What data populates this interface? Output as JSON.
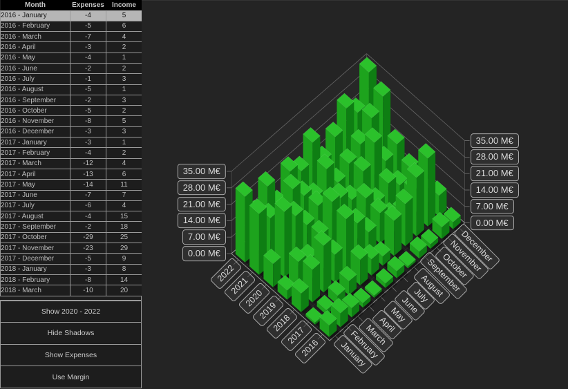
{
  "sidebar": {
    "table": {
      "headers": [
        "Month",
        "Expenses",
        "Income"
      ],
      "selected_row_index": 0,
      "rows": [
        {
          "month": "2016 - January",
          "expenses": "-4",
          "income": "5"
        },
        {
          "month": "2016 - February",
          "expenses": "-5",
          "income": "6"
        },
        {
          "month": "2016 - March",
          "expenses": "-7",
          "income": "4"
        },
        {
          "month": "2016 - April",
          "expenses": "-3",
          "income": "2"
        },
        {
          "month": "2016 - May",
          "expenses": "-4",
          "income": "1"
        },
        {
          "month": "2016 - June",
          "expenses": "-2",
          "income": "2"
        },
        {
          "month": "2016 - July",
          "expenses": "-1",
          "income": "3"
        },
        {
          "month": "2016 - August",
          "expenses": "-5",
          "income": "1"
        },
        {
          "month": "2016 - September",
          "expenses": "-2",
          "income": "3"
        },
        {
          "month": "2016 - October",
          "expenses": "-5",
          "income": "2"
        },
        {
          "month": "2016 - November",
          "expenses": "-8",
          "income": "5"
        },
        {
          "month": "2016 - December",
          "expenses": "-3",
          "income": "3"
        },
        {
          "month": "2017 - January",
          "expenses": "-3",
          "income": "1"
        },
        {
          "month": "2017 - February",
          "expenses": "-4",
          "income": "2"
        },
        {
          "month": "2017 - March",
          "expenses": "-12",
          "income": "4"
        },
        {
          "month": "2017 - April",
          "expenses": "-13",
          "income": "6"
        },
        {
          "month": "2017 - May",
          "expenses": "-14",
          "income": "11"
        },
        {
          "month": "2017 - June",
          "expenses": "-7",
          "income": "7"
        },
        {
          "month": "2017 - July",
          "expenses": "-6",
          "income": "4"
        },
        {
          "month": "2017 - August",
          "expenses": "-4",
          "income": "15"
        },
        {
          "month": "2017 - September",
          "expenses": "-2",
          "income": "18"
        },
        {
          "month": "2017 - October",
          "expenses": "-29",
          "income": "25"
        },
        {
          "month": "2017 - November",
          "expenses": "-23",
          "income": "29"
        },
        {
          "month": "2017 - December",
          "expenses": "-5",
          "income": "9"
        },
        {
          "month": "2018 - January",
          "expenses": "-3",
          "income": "8"
        },
        {
          "month": "2018 - February",
          "expenses": "-8",
          "income": "14"
        },
        {
          "month": "2018 - March",
          "expenses": "-10",
          "income": "20"
        }
      ]
    },
    "buttons": [
      {
        "label": "Show 2020 - 2022"
      },
      {
        "label": "Hide Shadows"
      },
      {
        "label": "Show Expenses"
      },
      {
        "label": "Use Margin"
      }
    ]
  },
  "chart": {
    "value_axis_tick_labels": [
      "0.00 M€",
      "7.00 M€",
      "14.00 M€",
      "21.00 M€",
      "28.00 M€",
      "35.00 M€"
    ],
    "colors": {
      "background": "#242424",
      "floor": "#1e1e1e",
      "bar_top": "#2bc12b",
      "bar_left": "#1da31d",
      "bar_right": "#0e7e13",
      "grid_line": "#9a9a9a",
      "tick_line": "#8a8a8a",
      "shadow": "rgba(0,0,0,0.32)",
      "chip_border": "#a9a9a9",
      "chip_text": "#d9d9d9"
    }
  },
  "chart_data": {
    "type": "bar",
    "subtype": "3d-column",
    "title": "",
    "xlabel": "Month",
    "ylabel": "Year",
    "zlabel": "M€",
    "zlim": [
      0,
      35
    ],
    "tick_step": 7,
    "value_suffix": " M€",
    "legend": [],
    "categories": [
      "January",
      "February",
      "March",
      "April",
      "May",
      "June",
      "July",
      "August",
      "September",
      "October",
      "November",
      "December"
    ],
    "series": [
      {
        "name": "2016",
        "values": [
          5,
          6,
          4,
          2,
          1,
          2,
          3,
          1,
          3,
          2,
          5,
          3
        ]
      },
      {
        "name": "2017",
        "values": [
          1,
          2,
          4,
          6,
          11,
          7,
          4,
          15,
          18,
          25,
          29,
          9
        ]
      },
      {
        "name": "2018",
        "values": [
          8,
          14,
          20,
          12,
          23,
          17,
          9,
          13,
          7,
          5,
          10,
          6
        ]
      },
      {
        "name": "2019",
        "values": [
          4,
          12,
          9,
          15,
          25,
          11,
          6,
          14,
          8,
          12,
          7,
          10
        ]
      },
      {
        "name": "2020",
        "values": [
          10,
          28,
          22,
          14,
          18,
          10,
          13,
          8,
          16,
          24,
          12,
          15
        ]
      },
      {
        "name": "2021",
        "values": [
          26,
          20,
          15,
          24,
          17,
          12,
          20,
          10,
          14,
          18,
          25,
          30
        ]
      },
      {
        "name": "2022",
        "values": [
          28,
          16,
          24,
          12,
          22,
          18,
          26,
          14,
          20,
          28,
          22,
          35
        ]
      }
    ]
  }
}
